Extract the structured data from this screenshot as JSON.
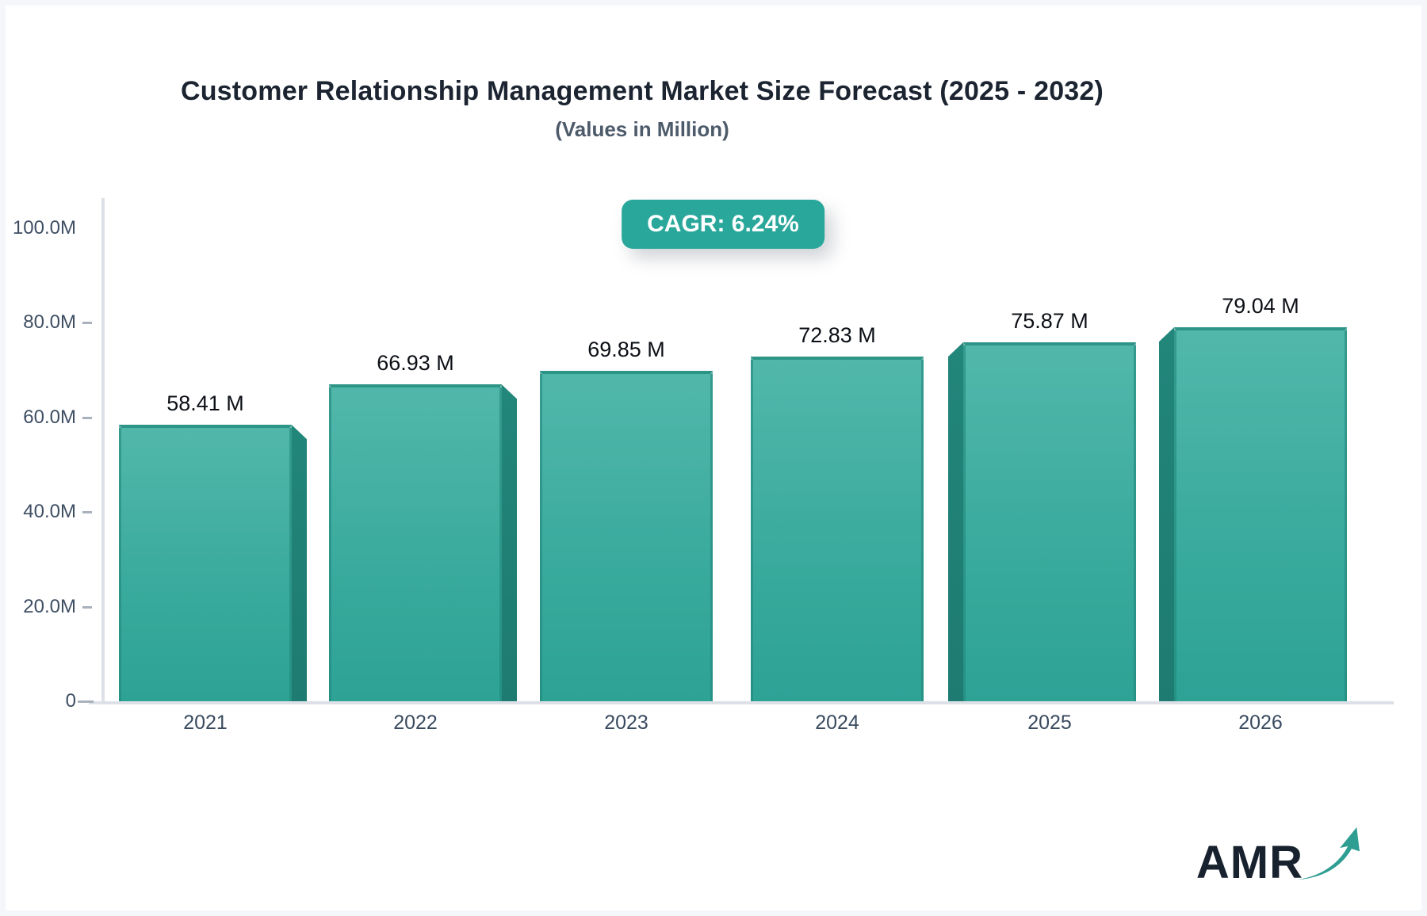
{
  "header": {
    "title": "Customer Relationship Management Market Size Forecast (2025 - 2032)",
    "subtitle": "(Values in Million)"
  },
  "badge": {
    "label": "CAGR: 6.24%",
    "bg_color": "#2aa79b",
    "text_color": "#ffffff"
  },
  "chart_data": {
    "type": "bar",
    "title": "Customer Relationship Management Market Size Forecast (2025 - 2032)",
    "subtitle": "(Values in Million)",
    "categories": [
      "2021",
      "2022",
      "2023",
      "2024",
      "2025",
      "2026"
    ],
    "values": [
      58.41,
      66.93,
      69.85,
      72.83,
      75.87,
      79.04
    ],
    "value_labels": [
      "58.41 M",
      "66.93 M",
      "69.85 M",
      "72.83 M",
      "75.87 M",
      "79.04 M"
    ],
    "unit": "Million",
    "xlabel": "",
    "ylabel": "",
    "ylim": [
      0,
      100
    ],
    "ytick_labels": [
      "100.0M",
      "80.0M",
      "60.0M",
      "40.0M",
      "20.0M",
      "0"
    ],
    "ytick_values": [
      100,
      80,
      60,
      40,
      20,
      0
    ],
    "grid": false,
    "legend": null,
    "bar_color_top": "#52b7ab",
    "bar_color_bottom": "#2da295",
    "bar_side_color": "#1e7b71",
    "shade_side": [
      "right",
      "right",
      "none",
      "none",
      "left",
      "left"
    ]
  },
  "logo": {
    "text": "AMR",
    "arrow_icon": "growth-arrow-icon",
    "arrow_color": "#2e9d92"
  }
}
